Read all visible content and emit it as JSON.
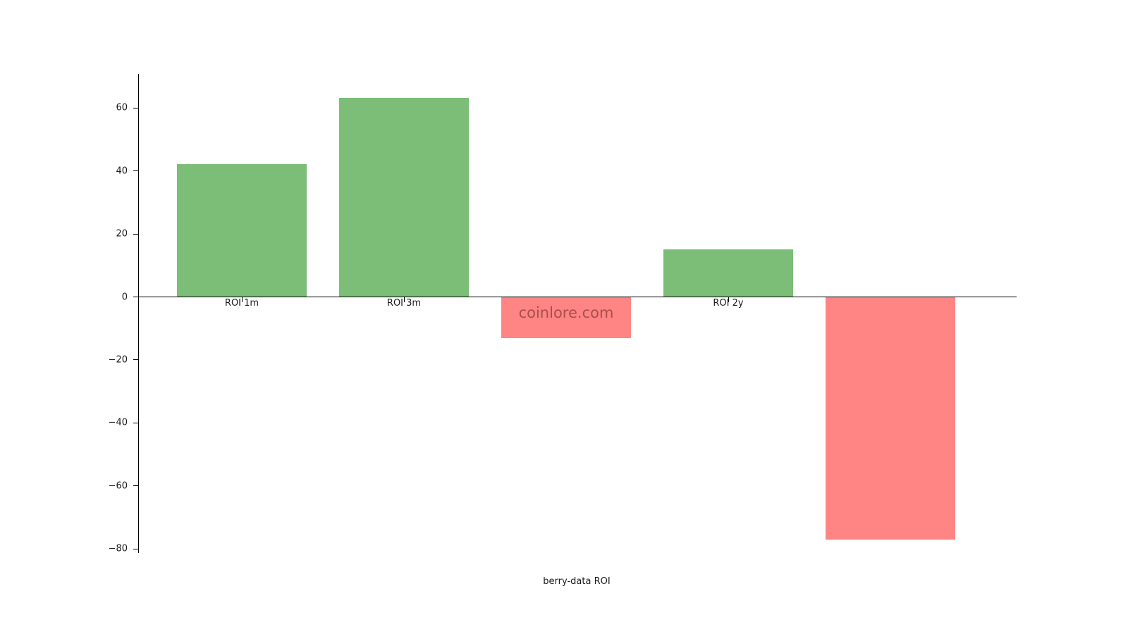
{
  "chart_data": {
    "type": "bar",
    "title": "berry-data ROI",
    "watermark": "coinlore.com",
    "categories": [
      "ROI 1m",
      "ROI 3m",
      "",
      "ROI 2y",
      ""
    ],
    "values": [
      42,
      63,
      -13,
      15,
      -77
    ],
    "yticks": [
      60,
      40,
      20,
      0,
      -20,
      -40,
      -60,
      -80
    ],
    "ylim": [
      -81.4,
      70.7
    ],
    "xlabel": "",
    "ylabel": "",
    "grid": false,
    "legend": null,
    "colors": {
      "positive": "#7cbd78",
      "negative": "#ff8585",
      "axis": "#000000",
      "text": "#1a1a1a",
      "watermark_text": "#9c4540"
    }
  }
}
